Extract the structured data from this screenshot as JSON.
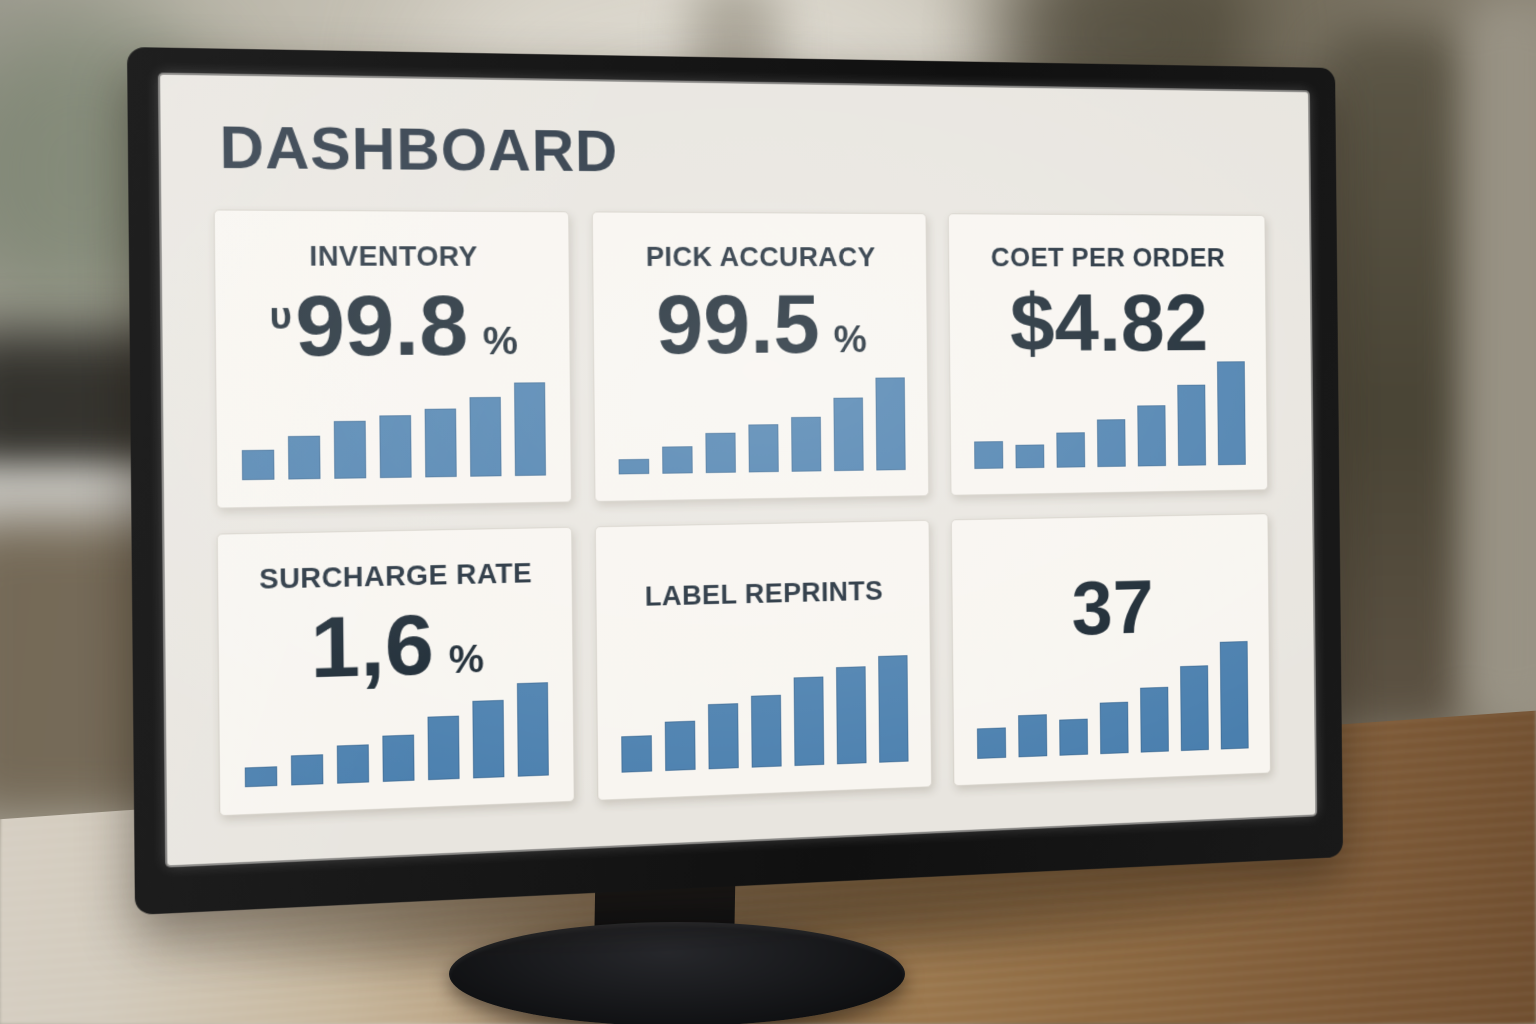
{
  "title": "DASHBOARD",
  "theme": {
    "bar_color": "#4a7fae",
    "text_color": "#1c2a37",
    "card_bg": "#f8f5f0",
    "screen_bg": "#e8e5df"
  },
  "cards": [
    {
      "title": "INVENTORY",
      "prefix": "υ",
      "value": "99.8",
      "unit": "%"
    },
    {
      "title": "PICK ACCURACY",
      "prefix": "",
      "value": "99.5",
      "unit": "%"
    },
    {
      "title": "COET PER ORDER",
      "prefix": "",
      "value": "$4.82",
      "unit": ""
    },
    {
      "title": "SURCHARGE RATE",
      "prefix": "",
      "value": "1,6",
      "unit": "%"
    },
    {
      "title": "LABEL REPRINTS",
      "prefix": "",
      "value": "",
      "unit": ""
    },
    {
      "title": "",
      "prefix": "",
      "value": "37",
      "unit": ""
    }
  ],
  "chart_data": [
    {
      "type": "bar",
      "title": "INVENTORY",
      "kpi_value": "υ99.8 %",
      "n_bars": 7,
      "x_labels": null,
      "values_relative_pct": [
        31,
        46,
        61,
        66,
        73,
        85,
        100
      ]
    },
    {
      "type": "bar",
      "title": "PICK ACCURACY",
      "kpi_value": "99.5 %",
      "n_bars": 7,
      "x_labels": null,
      "values_relative_pct": [
        16,
        29,
        43,
        51,
        59,
        79,
        100
      ]
    },
    {
      "type": "bar",
      "title": "COET PER ORDER",
      "kpi_value": "$4.82",
      "n_bars": 7,
      "x_labels": null,
      "values_relative_pct": [
        26,
        22,
        33,
        45,
        58,
        78,
        100
      ]
    },
    {
      "type": "bar",
      "title": "SURCHARGE RATE",
      "kpi_value": "1,6 %",
      "n_bars": 7,
      "x_labels": null,
      "values_relative_pct": [
        21,
        31,
        40,
        49,
        67,
        83,
        100
      ]
    },
    {
      "type": "bar",
      "title": "LABEL REPRINTS",
      "kpi_value": "",
      "n_bars": 7,
      "x_labels": null,
      "values_relative_pct": [
        33,
        45,
        60,
        67,
        82,
        91,
        100
      ]
    },
    {
      "type": "bar",
      "title": "",
      "kpi_value": "37",
      "n_bars": 7,
      "x_labels": null,
      "values_relative_pct": [
        28,
        38,
        33,
        47,
        60,
        79,
        100
      ]
    }
  ]
}
